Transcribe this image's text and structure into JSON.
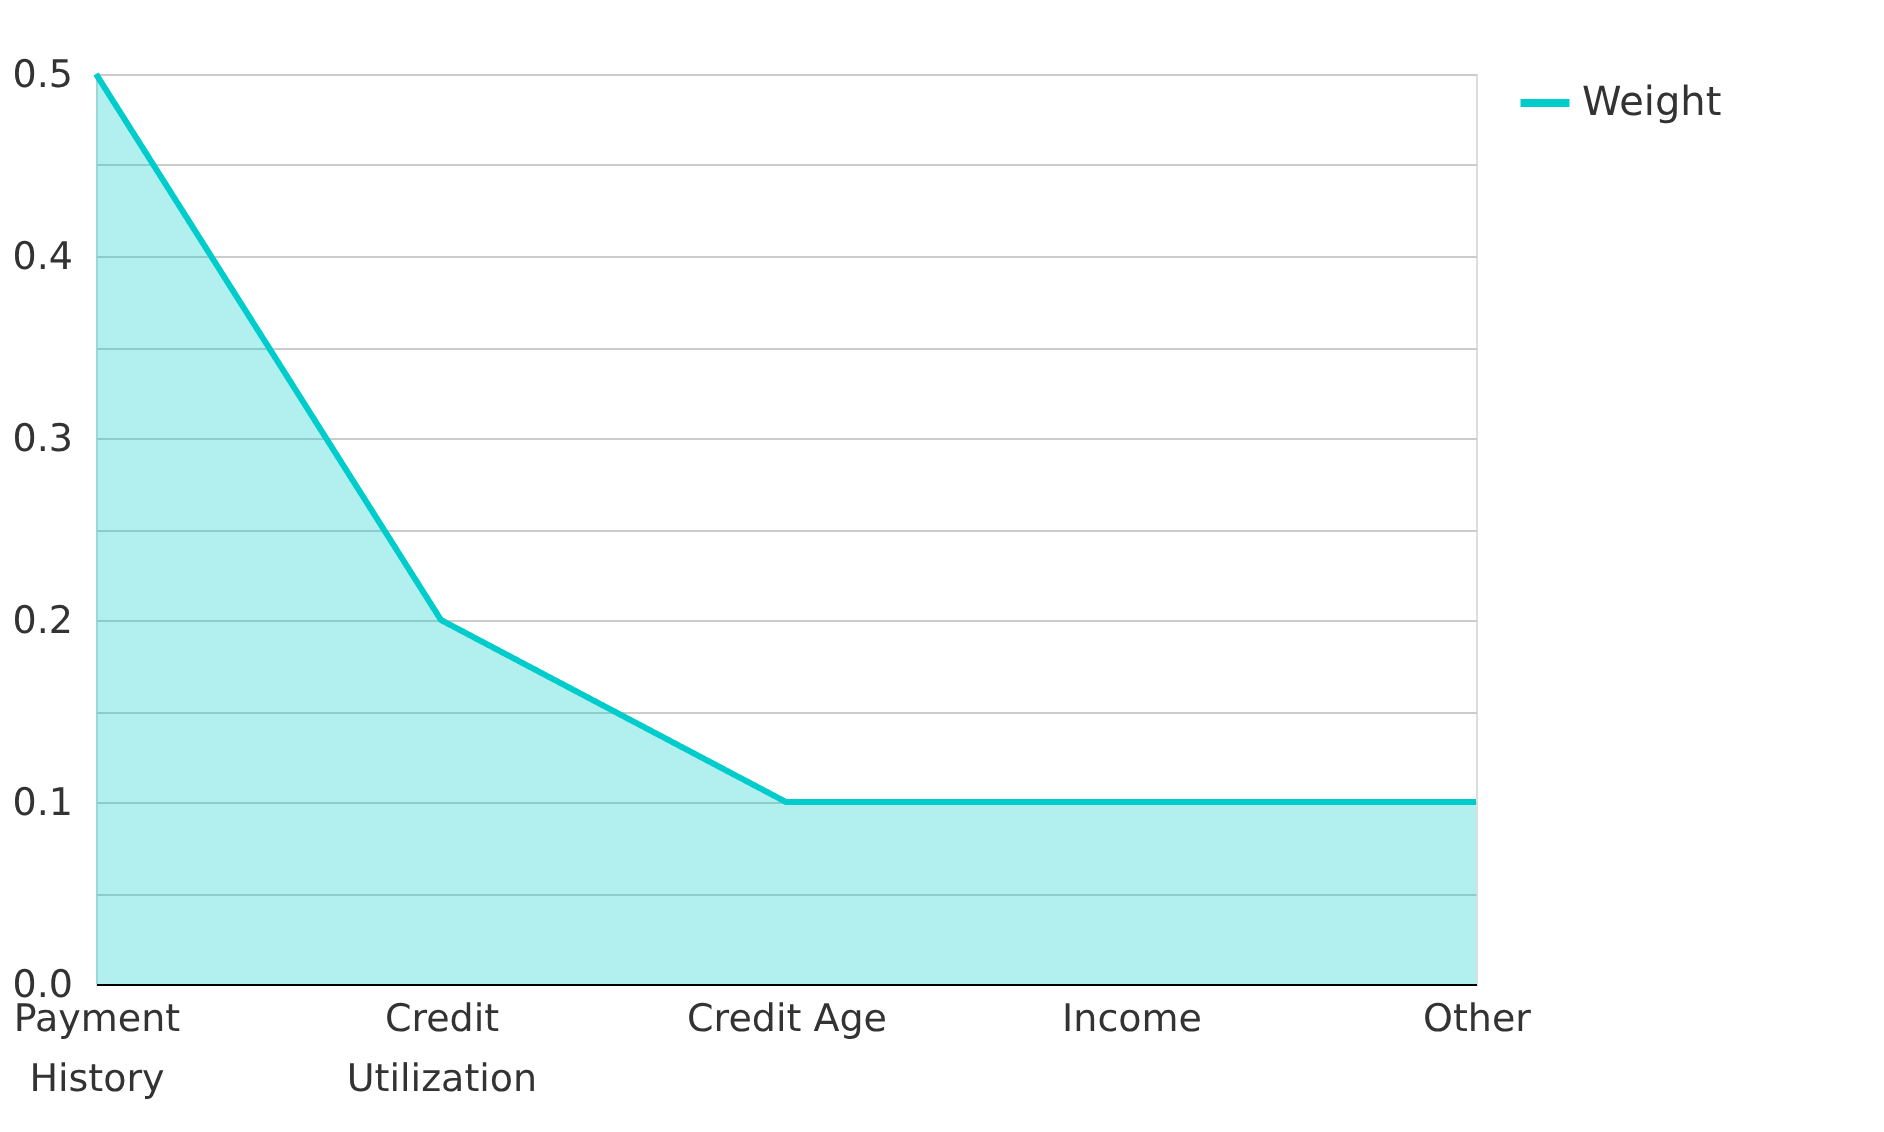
{
  "chart_data": {
    "type": "area",
    "categories": [
      "Payment History",
      "Credit Utilization",
      "Credit Age",
      "Income",
      "Other"
    ],
    "series": [
      {
        "name": "Weight",
        "color": "#00cccc",
        "values": [
          0.5,
          0.2,
          0.1,
          0.1,
          0.1
        ]
      }
    ],
    "ylim": [
      0,
      0.5
    ],
    "yticks": [
      {
        "value": 0,
        "label": "0.0"
      },
      {
        "value": 0.05,
        "label": null
      },
      0.1,
      {
        "value": 0.15,
        "label": null
      },
      0.2,
      {
        "value": 0.25,
        "label": null
      },
      0.3,
      {
        "value": 0.35,
        "label": null
      },
      0.4,
      {
        "value": 0.45,
        "label": null
      },
      0.5
    ],
    "grid": "y",
    "legend": "top right"
  }
}
